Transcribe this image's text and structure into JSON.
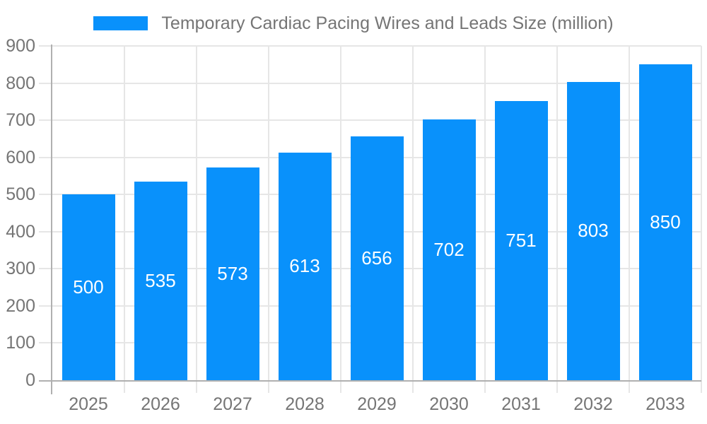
{
  "chart_data": {
    "type": "bar",
    "legend_entries": [
      {
        "label": "Temporary Cardiac Pacing Wires and Leads Size (million)",
        "color": "#0991FB"
      }
    ],
    "categories": [
      "2025",
      "2026",
      "2027",
      "2028",
      "2029",
      "2030",
      "2031",
      "2032",
      "2033"
    ],
    "values": [
      500,
      535,
      573,
      613,
      656,
      702,
      751,
      803,
      850
    ],
    "bar_value_labels": [
      "500",
      "535",
      "573",
      "613",
      "656",
      "702",
      "751",
      "803",
      "850"
    ],
    "ytick_labels": [
      "0",
      "100",
      "200",
      "300",
      "400",
      "500",
      "600",
      "700",
      "800",
      "900"
    ],
    "ylim": [
      0,
      900
    ],
    "ytick_step": 100,
    "grid": true,
    "legend_position": "top",
    "colors": {
      "bar": "#0991FB",
      "grid": "#E6E6E6",
      "axis_line": "#B0B0B0",
      "tick_label": "#757575",
      "bar_label": "#FFFFFF",
      "background": "#FFFFFF"
    }
  }
}
